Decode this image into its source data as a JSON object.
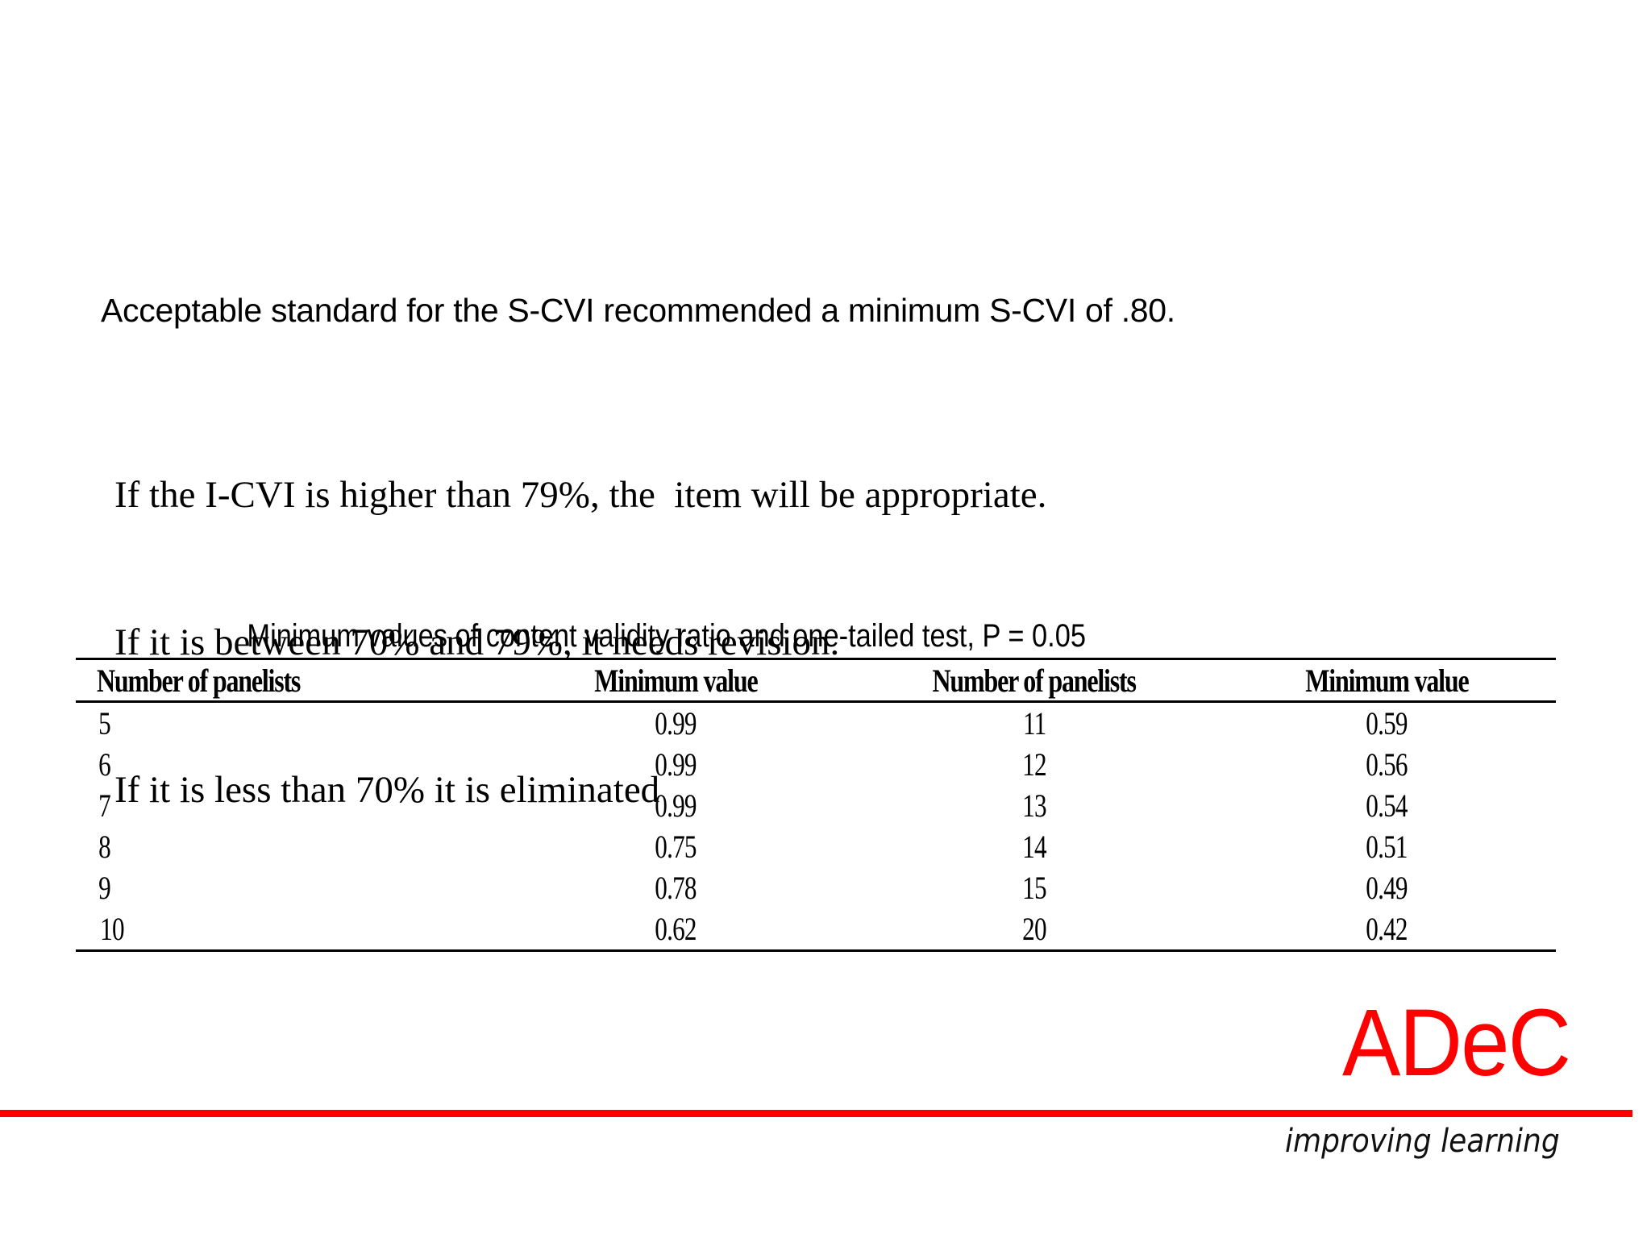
{
  "slide": {
    "heading": "Acceptable standard for the S-CVI recommended a minimum S-CVI of .80.",
    "rules": [
      "If the I-CVI is higher than 79%, the  item will be appropriate.",
      "If it is between 70% and 79%, it needs revision.",
      "If it is less than 70% it is eliminated"
    ]
  },
  "table": {
    "caption": "Minimum values of content validity ratio and one-tailed test, P = 0.05",
    "headers": [
      "Number of panelists",
      "Minimum value",
      "Number of panelists",
      "Minimum value"
    ],
    "rows": [
      [
        "5",
        "0.99",
        "11",
        "0.59"
      ],
      [
        "6",
        "0.99",
        "12",
        "0.56"
      ],
      [
        "7",
        "0.99",
        "13",
        "0.54"
      ],
      [
        "8",
        "0.75",
        "14",
        "0.51"
      ],
      [
        "9",
        "0.78",
        "15",
        "0.49"
      ],
      [
        "10",
        "0.62",
        "20",
        "0.42"
      ]
    ]
  },
  "branding": {
    "logo": "ADeC",
    "tagline": "improving learning",
    "accent_color": "#ff0000"
  }
}
